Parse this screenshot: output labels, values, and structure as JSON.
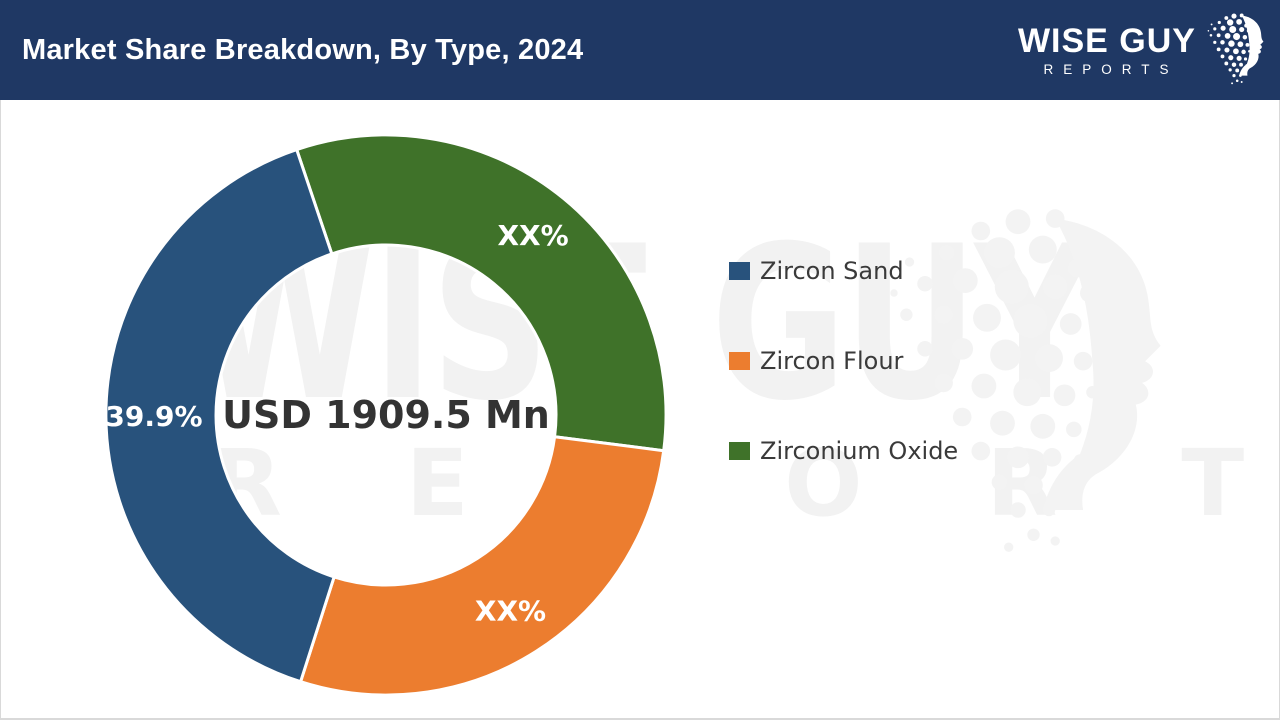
{
  "header": {
    "title": "Market Share Breakdown, By Type, 2024",
    "logo": {
      "wordmark": "WISE GUY",
      "subtitle": "REPORTS"
    }
  },
  "watermark": {
    "wordmark": "WISE GUY",
    "subtitle": "R E P O R T S"
  },
  "chart_data": {
    "type": "pie",
    "subtype": "donut",
    "title": "Market Share Breakdown, By Type, 2024",
    "center_label": "USD 1909.5 Mn",
    "start_angle_deg": -18.6,
    "direction": "clockwise",
    "slices": [
      {
        "name": "Zirconium Oxide",
        "value": 32.2,
        "display_label": "XX%",
        "color": "#3F7229"
      },
      {
        "name": "Zircon Flour",
        "value": 27.9,
        "display_label": "XX%",
        "color": "#EC7D2F"
      },
      {
        "name": "Zircon Sand",
        "value": 39.9,
        "display_label": "39.9%",
        "color": "#28527C"
      }
    ],
    "legend": {
      "position": "right",
      "items": [
        {
          "label": "Zircon Sand",
          "color": "#28527C"
        },
        {
          "label": "Zircon Flour",
          "color": "#EC7D2F"
        },
        {
          "label": "Zirconium Oxide",
          "color": "#3F7229"
        }
      ]
    }
  },
  "colors": {
    "header_background": "#1F3864",
    "border": "#D9D9D9",
    "watermark": "#F2F2F2",
    "center_label_text": "#333333",
    "legend_text": "#3A3A3A",
    "slice_label_text": "#FFFFFF"
  }
}
